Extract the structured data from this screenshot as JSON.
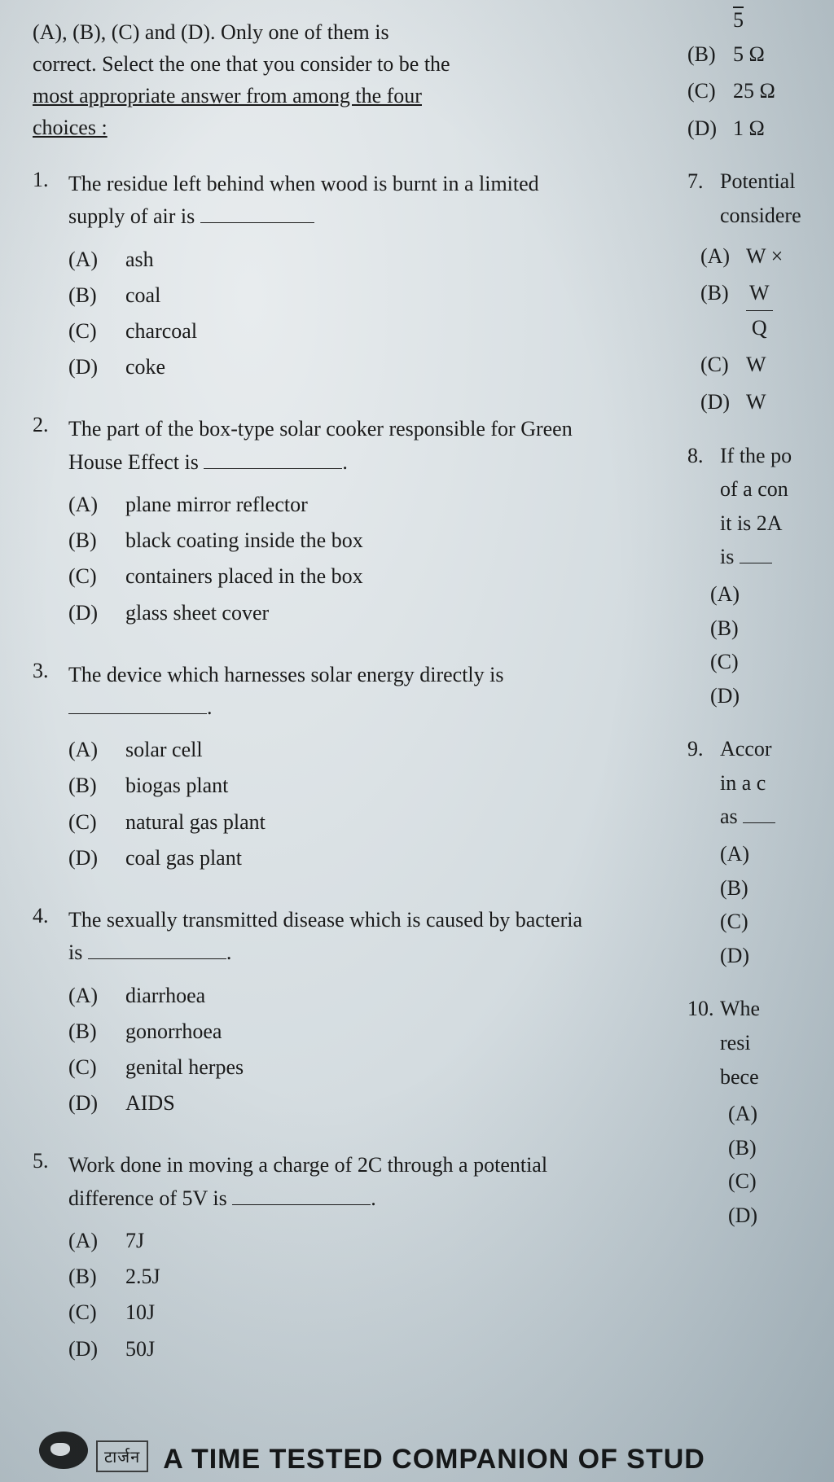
{
  "instructions": {
    "line1_pre": "(A), (B), (C) and (D). Only one of them is",
    "line2": "correct. Select the one that you consider to be the",
    "line3": "most appropriate answer from among the four",
    "line4": "choices :"
  },
  "questions": [
    {
      "num": "1.",
      "text_pre": "The residue left behind when wood is burnt in a limited supply of air is ",
      "blank_width": 140,
      "text_post": "",
      "options": [
        {
          "letter": "(A)",
          "text": "ash"
        },
        {
          "letter": "(B)",
          "text": "coal"
        },
        {
          "letter": "(C)",
          "text": "charcoal"
        },
        {
          "letter": "(D)",
          "text": "coke"
        }
      ]
    },
    {
      "num": "2.",
      "text_pre": "The part of the box-type solar cooker responsible for Green House Effect is ",
      "blank_width": 170,
      "text_post": ".",
      "options": [
        {
          "letter": "(A)",
          "text": "plane mirror reflector"
        },
        {
          "letter": "(B)",
          "text": "black coating inside the box"
        },
        {
          "letter": "(C)",
          "text": "containers placed in the box"
        },
        {
          "letter": "(D)",
          "text": "glass sheet cover"
        }
      ]
    },
    {
      "num": "3.",
      "text_pre": "The device which harnesses solar energy directly is ",
      "blank_width": 170,
      "text_post": ".",
      "options": [
        {
          "letter": "(A)",
          "text": "solar cell"
        },
        {
          "letter": "(B)",
          "text": "biogas plant"
        },
        {
          "letter": "(C)",
          "text": "natural gas plant"
        },
        {
          "letter": "(D)",
          "text": "coal gas plant"
        }
      ]
    },
    {
      "num": "4.",
      "text_pre": "The sexually transmitted disease which is caused by bacteria is ",
      "blank_width": 170,
      "text_post": ".",
      "options": [
        {
          "letter": "(A)",
          "text": "diarrhoea"
        },
        {
          "letter": "(B)",
          "text": "gonorrhoea"
        },
        {
          "letter": "(C)",
          "text": "genital herpes"
        },
        {
          "letter": "(D)",
          "text": "AIDS"
        }
      ]
    },
    {
      "num": "5.",
      "text_pre": "Work done in moving a charge of 2C through a potential difference of 5V is ",
      "blank_width": 170,
      "text_post": ".",
      "options": [
        {
          "letter": "(A)",
          "text": "7J"
        },
        {
          "letter": "(B)",
          "text": "2.5J"
        },
        {
          "letter": "(C)",
          "text": "10J"
        },
        {
          "letter": "(D)",
          "text": "50J"
        }
      ]
    }
  ],
  "right": {
    "top_frac": "5",
    "prior_opts": [
      {
        "letter": "(B)",
        "text": "5 Ω"
      },
      {
        "letter": "(C)",
        "text": "25 Ω"
      },
      {
        "letter": "(D)",
        "text": "1 Ω"
      }
    ],
    "q7": {
      "num": "7.",
      "text1": "Potential",
      "text2": "considere",
      "opts": [
        {
          "letter": "(A)",
          "text": "W ×"
        },
        {
          "letter": "(B)",
          "text": "W",
          "frac_bottom": "Q"
        },
        {
          "letter": "(C)",
          "text": "W"
        },
        {
          "letter": "(D)",
          "text": "W"
        }
      ]
    },
    "q8": {
      "num": "8.",
      "lines": [
        "If the po",
        "of a con",
        "it is 2A",
        "is"
      ],
      "opts": [
        "(A)",
        "(B)",
        "(C)",
        "(D)"
      ]
    },
    "q9": {
      "num": "9.",
      "lines": [
        "Accor",
        "in a c",
        "as"
      ],
      "opts": [
        "(A)",
        "(B)",
        "(C)",
        "(D)"
      ]
    },
    "q10": {
      "num": "10.",
      "lines": [
        "Whe",
        "resi",
        "bece"
      ],
      "opts": [
        "(A)",
        "(B)",
        "(C)",
        "(D)"
      ]
    }
  },
  "footer": {
    "logo_text": "टार्जन",
    "slogan": "A TIME TESTED COMPANION OF STUD"
  }
}
